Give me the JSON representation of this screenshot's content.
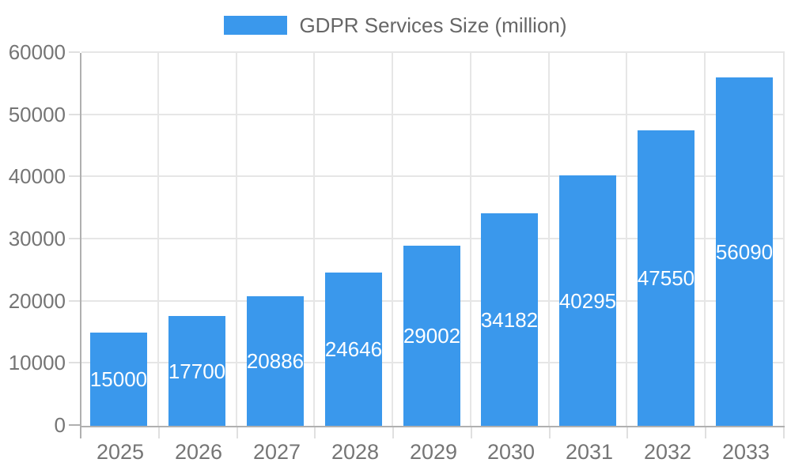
{
  "chart_data": {
    "type": "bar",
    "title": "",
    "legend": "GDPR Services Size (million)",
    "legend_position": "top",
    "categories": [
      "2025",
      "2026",
      "2027",
      "2028",
      "2029",
      "2030",
      "2031",
      "2032",
      "2033"
    ],
    "values": [
      15000,
      17700,
      20886,
      24646,
      29002,
      34182,
      40295,
      47550,
      56090
    ],
    "bar_value_labels": [
      "15000",
      "17700",
      "20886",
      "24646",
      "29002",
      "34182",
      "40295",
      "47550",
      "56090"
    ],
    "xlabel": "",
    "ylabel": "",
    "ylim": [
      0,
      60000
    ],
    "ytick_step": 10000,
    "ytick_labels": [
      "0",
      "10000",
      "20000",
      "30000",
      "40000",
      "50000",
      "60000"
    ],
    "grid": true,
    "colors": {
      "bar": "#3A98EC",
      "bar_value_text": "#ffffff",
      "axis_line": "#b0b0b0",
      "gridline": "#e6e6e6",
      "tick_mark": "#e0e0e0",
      "tick_label_text": "#757575",
      "legend_text": "#666666",
      "background": "#ffffff"
    }
  }
}
